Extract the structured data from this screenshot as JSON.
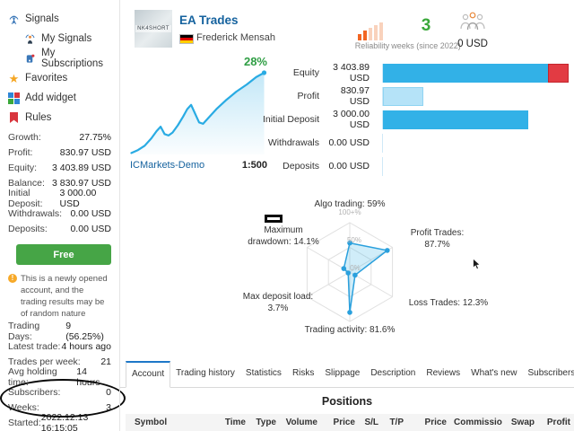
{
  "colors": {
    "accent_blue": "#2aa7e0",
    "link_blue": "#15629e",
    "green": "#3aa83a",
    "bar_red": "#e23b43",
    "bar_light_blue": "#b5e3f8",
    "free_button_green": "#46a546",
    "reliability_orange": "#f26522"
  },
  "sidebar": {
    "nav": [
      {
        "label": "Signals"
      },
      {
        "label": "My Signals"
      },
      {
        "label": "My Subscriptions"
      },
      {
        "label": "Favorites"
      },
      {
        "label": "Add widget"
      },
      {
        "label": "Rules"
      }
    ],
    "stats_top": [
      {
        "label": "Growth:",
        "value": "27.75%"
      },
      {
        "label": "Profit:",
        "value": "830.97 USD"
      },
      {
        "label": "Equity:",
        "value": "3 403.89 USD"
      },
      {
        "label": "Balance:",
        "value": "3 830.97 USD"
      },
      {
        "label": "Initial Deposit:",
        "value": "3 000.00 USD"
      },
      {
        "label": "Withdrawals:",
        "value": "0.00 USD"
      },
      {
        "label": "Deposits:",
        "value": "0.00 USD"
      }
    ],
    "free_button": "Free",
    "notice": "This is a newly opened account, and the trading results may be of random nature",
    "stats_bottom": [
      {
        "label": "Trading Days:",
        "value": "9 (56.25%)"
      },
      {
        "label": "Latest trade:",
        "value": "4 hours ago"
      },
      {
        "label": "Trades per week:",
        "value": "21"
      },
      {
        "label": "Avg holding time:",
        "value": "14 hours"
      },
      {
        "label": "Subscribers:",
        "value": "0"
      },
      {
        "label": "Weeks:",
        "value": "3"
      },
      {
        "label": "Started:",
        "value": "2022.12.13 16:15:05"
      }
    ]
  },
  "header": {
    "avatar_text": "NK4SHORT",
    "title": "EA Trades",
    "author": "Frederick Mensah",
    "flag": "germany-flag",
    "reliability_label": "Reliability",
    "weeks_value": "3",
    "weeks_label": "weeks (since 2022)",
    "price": "0 USD"
  },
  "chart_data": [
    {
      "type": "area",
      "title": "Growth",
      "unit": "%",
      "x": [
        0,
        5,
        10,
        15,
        19,
        22,
        25,
        28,
        31,
        35,
        39,
        42,
        45,
        48,
        51,
        54,
        58,
        64,
        71,
        79,
        87,
        94,
        100
      ],
      "y": [
        0.5,
        1.5,
        3,
        5.5,
        8,
        9.5,
        7,
        6.5,
        7.5,
        10,
        13,
        15.5,
        17,
        14,
        11,
        10.5,
        12.5,
        15.5,
        18.5,
        21.5,
        24,
        26.5,
        28
      ],
      "ylim": [
        0,
        28
      ],
      "end_label": "28%",
      "footer_left": "ICMarkets-Demo",
      "footer_right": "1:500",
      "line_color": "#29abe3"
    },
    {
      "type": "bar",
      "orientation": "horizontal",
      "max": 3830.97,
      "rows": [
        {
          "label": "Equity",
          "value_label": "3 403.89 USD",
          "segments": [
            {
              "name": "equity",
              "value": 3403.89,
              "color": "#32b1e7"
            },
            {
              "name": "floating-loss",
              "value": 427.08,
              "color": "#e23b43",
              "border": "#c4252d"
            }
          ]
        },
        {
          "label": "Profit",
          "value_label": "830.97 USD",
          "segments": [
            {
              "name": "profit",
              "value": 830.97,
              "color": "#b5e3f8",
              "border": "#8fd4f2"
            }
          ]
        },
        {
          "label": "Initial Deposit",
          "value_label": "3 000.00 USD",
          "segments": [
            {
              "name": "initial-deposit",
              "value": 3000,
              "color": "#32b1e7"
            }
          ]
        },
        {
          "label": "Withdrawals",
          "value_label": "0.00 USD",
          "segments": []
        },
        {
          "label": "Deposits",
          "value_label": "0.00 USD",
          "segments": []
        }
      ]
    },
    {
      "type": "radar",
      "axes": [
        "Algo trading",
        "Profit Trades",
        "Loss Trades",
        "Trading activity",
        "Max deposit load",
        "Maximum drawdown"
      ],
      "values": [
        59,
        87.7,
        12.3,
        81.6,
        3.7,
        14.1
      ],
      "max": 100,
      "display": {
        "top": "Algo trading: 59%",
        "top_right": [
          "Profit Trades:",
          "87.7%"
        ],
        "bottom_right": "Loss Trades: 12.3%",
        "bottom": "Trading activity: 81.6%",
        "bottom_left": [
          "Max deposit load:",
          "3.7%"
        ],
        "top_left": [
          "Maximum",
          "drawdown: 14.1%"
        ],
        "scale": [
          "100+%",
          "50%",
          "0%"
        ]
      }
    }
  ],
  "tabs": {
    "items": [
      {
        "label": "Account",
        "active": true
      },
      {
        "label": "Trading history"
      },
      {
        "label": "Statistics"
      },
      {
        "label": "Risks"
      },
      {
        "label": "Slippage"
      },
      {
        "label": "Description"
      },
      {
        "label": "Reviews"
      },
      {
        "label": "What's new"
      },
      {
        "label": "Subscribers"
      }
    ]
  },
  "positions": {
    "title": "Positions",
    "columns": [
      "Symbol",
      "Time",
      "Type",
      "Volume",
      "Price",
      "S/L",
      "T/P",
      "Price",
      "Commission",
      "Swap",
      "Profit"
    ]
  }
}
